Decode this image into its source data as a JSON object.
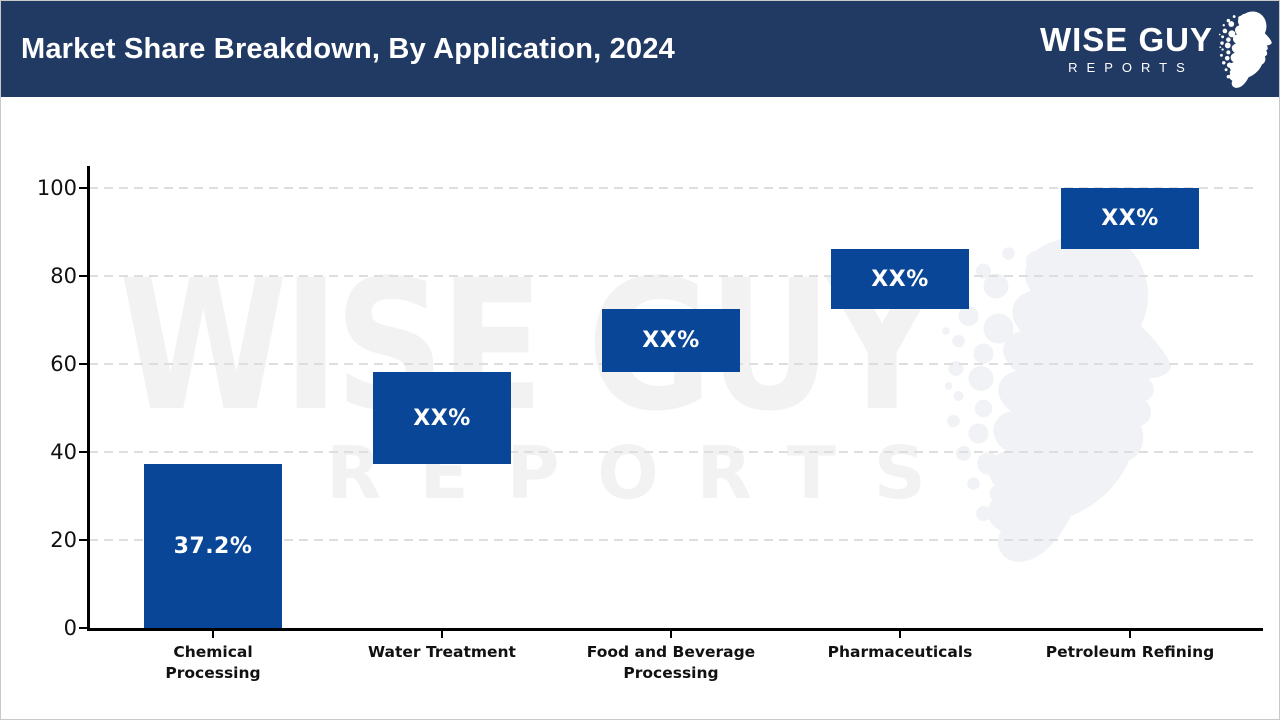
{
  "header": {
    "title": "Market Share Breakdown, By Application, 2024",
    "bg_color": "#213a63",
    "brand": {
      "line1": "WISE GUY",
      "line2": "REPORTS"
    }
  },
  "watermark": {
    "line1": "WISE GUY",
    "line2": "REPORTS"
  },
  "chart_data": {
    "type": "bar",
    "subtype": "waterfall",
    "title": "Market Share Breakdown, By Application, 2024",
    "categories": [
      "Chemical Processing",
      "Water Treatment",
      "Food and Beverage Processing",
      "Pharmaceuticals",
      "Petroleum Refining"
    ],
    "category_lines": [
      [
        "Chemical",
        "Processing"
      ],
      [
        "Water Treatment"
      ],
      [
        "Food and Beverage",
        "Processing"
      ],
      [
        "Pharmaceuticals"
      ],
      [
        "Petroleum Refining"
      ]
    ],
    "segments": [
      {
        "start": 0,
        "end": 37.2,
        "label": "37.2%"
      },
      {
        "start": 37.2,
        "end": 58.2,
        "label": "XX%"
      },
      {
        "start": 58.2,
        "end": 72.4,
        "label": "XX%"
      },
      {
        "start": 72.4,
        "end": 86.2,
        "label": "XX%"
      },
      {
        "start": 86.2,
        "end": 100,
        "label": "XX%"
      }
    ],
    "xlabel": "",
    "ylabel": "",
    "ylim": [
      0,
      105
    ],
    "yticks": [
      0,
      20,
      40,
      60,
      80,
      100
    ],
    "grid": "horizontal-dashed",
    "legend": "none",
    "bar_color": "#0a4697",
    "value_label_color": "#ffffff",
    "axis_color": "#000000",
    "gridline_color": "#dedede"
  }
}
